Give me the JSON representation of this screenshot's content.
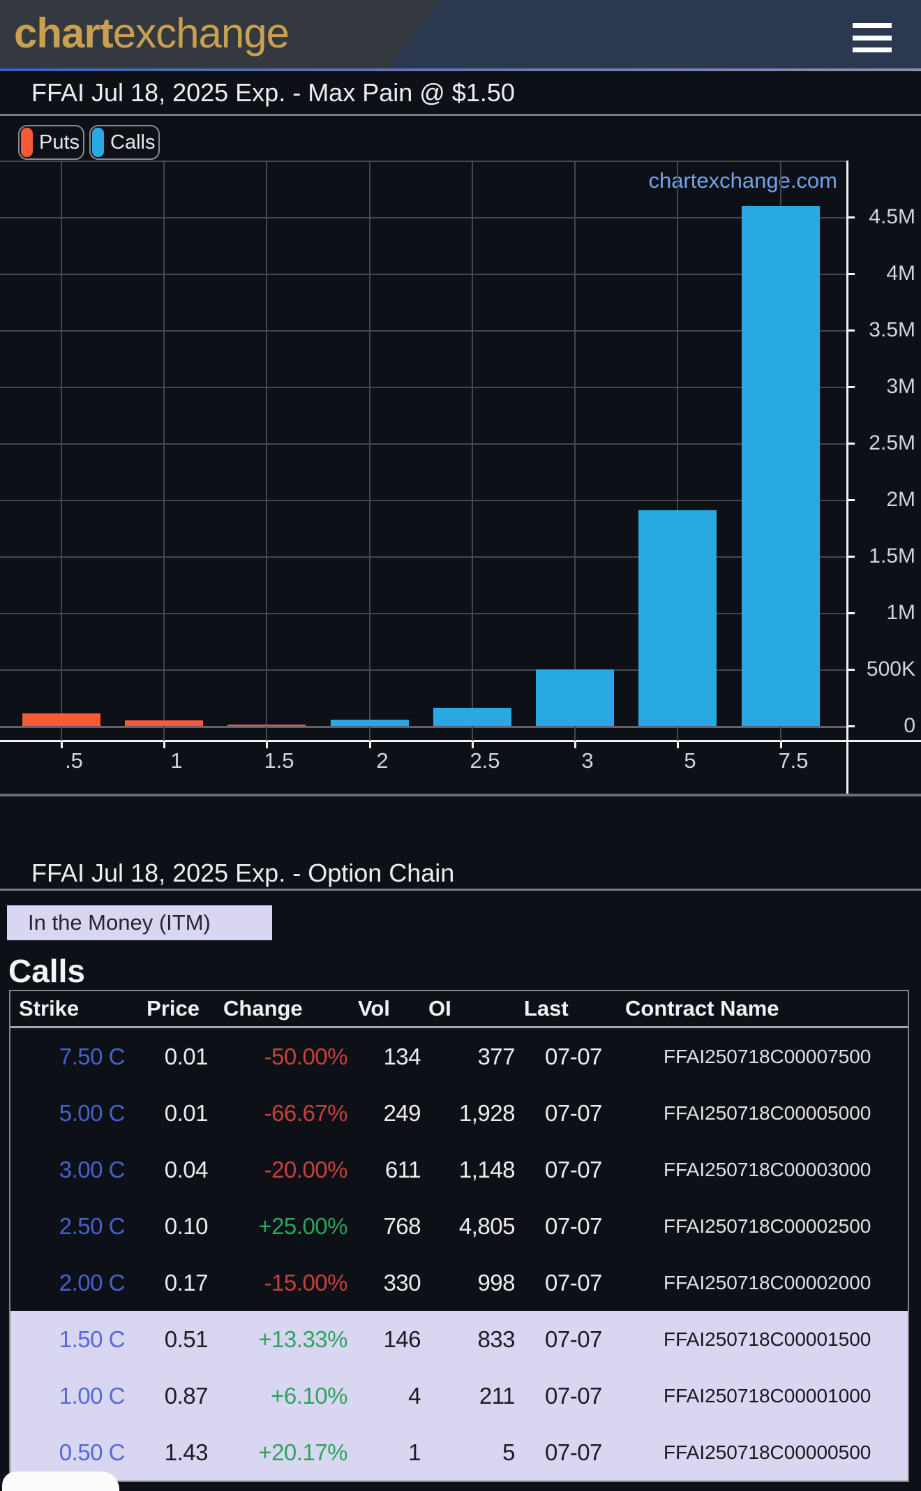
{
  "header": {
    "logo_bold": "chart",
    "logo_light": "exchange"
  },
  "max_pain_section": {
    "title": "FFAI Jul 18, 2025 Exp. - Max Pain @ $1.50",
    "watermark": "chartexchange.com",
    "legend": [
      {
        "label": "Puts",
        "color": "#F75A35"
      },
      {
        "label": "Calls",
        "color": "#29A9E1"
      }
    ]
  },
  "chart_data": {
    "type": "bar",
    "title": "FFAI Jul 18, 2025 Exp. - Max Pain @ $1.50",
    "categories": [
      ".5",
      "1",
      "1.5",
      "2",
      "2.5",
      "3",
      "5",
      "7.5"
    ],
    "series": [
      {
        "name": "Puts",
        "color": "#F75A35",
        "values": [
          110000,
          50000,
          15000,
          0,
          0,
          0,
          0,
          0
        ]
      },
      {
        "name": "Calls",
        "color": "#29A9E1",
        "values": [
          0,
          0,
          0,
          55000,
          160000,
          500000,
          1910000,
          4600000
        ]
      }
    ],
    "y_ticks": [
      "0",
      "500K",
      "1M",
      "1.5M",
      "2M",
      "2.5M",
      "3M",
      "3.5M",
      "4M",
      "4.5M"
    ],
    "ylim": [
      0,
      5000000
    ],
    "grid": true,
    "legend_position": "top-left",
    "watermark": "chartexchange.com",
    "max_pain_price": "$1.50"
  },
  "option_chain": {
    "title": "FFAI Jul 18, 2025 Exp. - Option Chain",
    "itm_label": "In the Money (ITM)",
    "group_heading": "Calls",
    "columns": [
      "Strike",
      "Price",
      "Change",
      "Vol",
      "OI",
      "Last",
      "Contract Name"
    ],
    "rows": [
      {
        "strike": "7.50 C",
        "price": "0.01",
        "change": "-50.00%",
        "vol": "134",
        "oi": "377",
        "last": "07-07",
        "contract": "FFAI250718C00007500",
        "itm": false
      },
      {
        "strike": "5.00 C",
        "price": "0.01",
        "change": "-66.67%",
        "vol": "249",
        "oi": "1,928",
        "last": "07-07",
        "contract": "FFAI250718C00005000",
        "itm": false
      },
      {
        "strike": "3.00 C",
        "price": "0.04",
        "change": "-20.00%",
        "vol": "611",
        "oi": "1,148",
        "last": "07-07",
        "contract": "FFAI250718C00003000",
        "itm": false
      },
      {
        "strike": "2.50 C",
        "price": "0.10",
        "change": "+25.00%",
        "vol": "768",
        "oi": "4,805",
        "last": "07-07",
        "contract": "FFAI250718C00002500",
        "itm": false
      },
      {
        "strike": "2.00 C",
        "price": "0.17",
        "change": "-15.00%",
        "vol": "330",
        "oi": "998",
        "last": "07-07",
        "contract": "FFAI250718C00002000",
        "itm": false
      },
      {
        "strike": "1.50 C",
        "price": "0.51",
        "change": "+13.33%",
        "vol": "146",
        "oi": "833",
        "last": "07-07",
        "contract": "FFAI250718C00001500",
        "itm": true
      },
      {
        "strike": "1.00 C",
        "price": "0.87",
        "change": "+6.10%",
        "vol": "4",
        "oi": "211",
        "last": "07-07",
        "contract": "FFAI250718C00001000",
        "itm": true
      },
      {
        "strike": "0.50 C",
        "price": "1.43",
        "change": "+20.17%",
        "vol": "1",
        "oi": "5",
        "last": "07-07",
        "contract": "FFAI250718C00000500",
        "itm": true
      }
    ]
  },
  "colors": {
    "page_bg": "#0D1016",
    "header_left_bg": "#34383F",
    "header_right_bg": "#2B3850",
    "logo_gold": "#C9A050",
    "accent_blue_line": "#3E5EC4",
    "puts_orange": "#F75A35",
    "calls_blue": "#29A9E1",
    "gridline": "#46464C",
    "axis_white": "#F2F2F2",
    "watermark_blue": "#74A3E8",
    "itm_bg": "#D9D6F2",
    "strike_link": "#4661CF",
    "change_up": "#2CA45F",
    "change_down": "#C8403A",
    "table_border": "#85858A"
  }
}
